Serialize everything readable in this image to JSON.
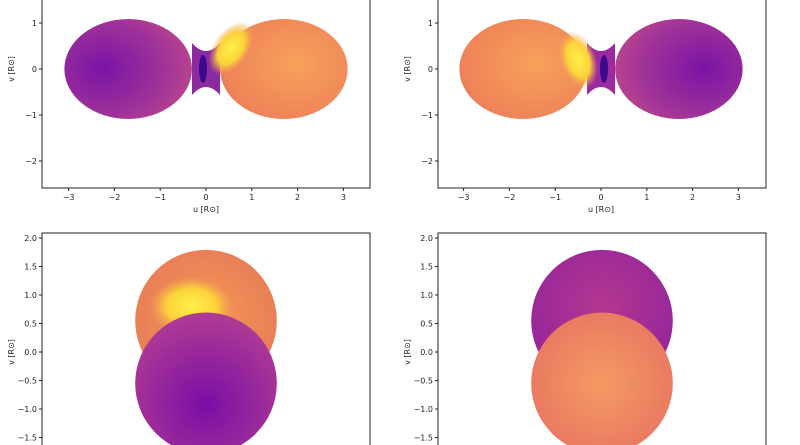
{
  "chart_data": [
    {
      "type": "scatter",
      "panel": "top-left",
      "xlabel": "u [R⊙]",
      "ylabel": "v [R⊙]",
      "xlim": [
        -3.6,
        3.6
      ],
      "ylim": [
        -2.6,
        1.5
      ],
      "xticks": [
        "−3",
        "−2",
        "−1",
        "0",
        "1",
        "2",
        "3"
      ],
      "yticks": [
        "1",
        "0",
        "−1",
        "−2"
      ],
      "components": [
        {
          "shape": "lobe",
          "center_u": -1.7,
          "center_v": 0.0,
          "radius": 1.18,
          "color": "#9a2aa6"
        },
        {
          "shape": "lobe",
          "center_u": 1.7,
          "center_v": 0.0,
          "radius": 1.18,
          "color": "#f07f55"
        }
      ],
      "hotspot": {
        "u": 0.55,
        "v": 0.45,
        "color": "#fbd040"
      }
    },
    {
      "type": "scatter",
      "panel": "top-right",
      "xlabel": "u [R⊙]",
      "ylabel": "v [R⊙]",
      "xlim": [
        -3.6,
        3.6
      ],
      "ylim": [
        -2.6,
        1.5
      ],
      "xticks": [
        "−3",
        "−2",
        "−1",
        "0",
        "1",
        "2",
        "3"
      ],
      "yticks": [
        "1",
        "0",
        "−1",
        "−2"
      ],
      "components": [
        {
          "shape": "lobe",
          "center_u": -1.7,
          "center_v": 0.0,
          "radius": 1.18,
          "color": "#f07f55"
        },
        {
          "shape": "lobe",
          "center_u": 1.7,
          "center_v": 0.0,
          "radius": 1.18,
          "color": "#9a2aa6"
        }
      ],
      "hotspot": {
        "u": -0.5,
        "v": 0.2,
        "color": "#fbe050"
      }
    },
    {
      "type": "scatter",
      "panel": "bottom-left",
      "ylabel": "v [R⊙]",
      "ylim": [
        -1.6,
        2.05
      ],
      "yticks": [
        "2.0",
        "1.5",
        "1.0",
        "0.5",
        "0.0",
        "−0.5",
        "−1.0",
        "−1.5"
      ],
      "components": [
        {
          "shape": "disk",
          "center_u": 0.0,
          "center_v": 0.55,
          "radius": 1.2,
          "color": "#ef8d52"
        },
        {
          "shape": "disk",
          "center_u": 0.0,
          "center_v": -0.55,
          "radius": 1.2,
          "color": "#9a2aa6"
        }
      ],
      "hotspot": {
        "u": -0.25,
        "v": 0.8,
        "color": "#fde03a"
      }
    },
    {
      "type": "scatter",
      "panel": "bottom-right",
      "ylabel": "v [R⊙]",
      "ylim": [
        -1.6,
        2.05
      ],
      "yticks": [
        "2.0",
        "1.5",
        "1.0",
        "0.5",
        "0.0",
        "−0.5",
        "−1.0",
        "−1.5"
      ],
      "components": [
        {
          "shape": "disk",
          "center_u": 0.0,
          "center_v": 0.55,
          "radius": 1.2,
          "color": "#a2309a"
        },
        {
          "shape": "disk",
          "center_u": 0.0,
          "center_v": -0.55,
          "radius": 1.2,
          "color": "#ee8058"
        }
      ]
    }
  ]
}
